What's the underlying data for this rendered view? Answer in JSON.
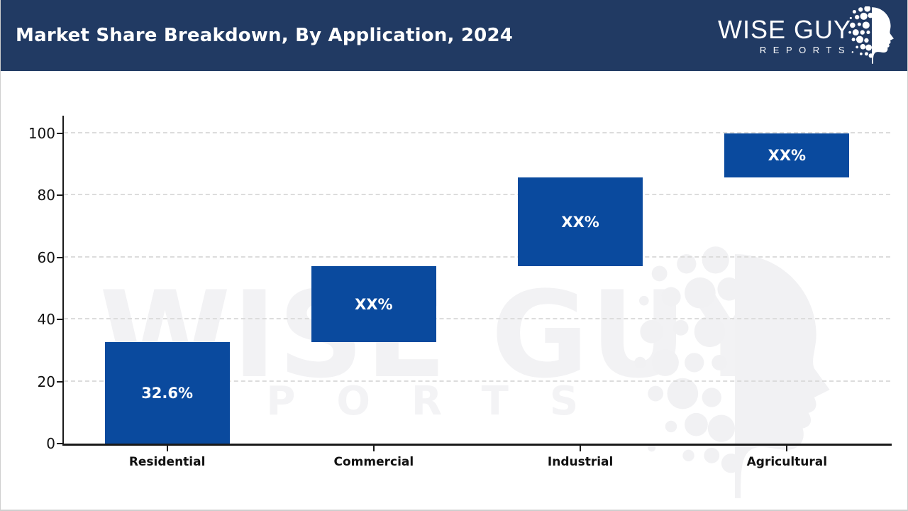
{
  "header": {
    "title": "Market Share Breakdown, By Application, 2024",
    "bg_color": "#213a63",
    "logo": {
      "line1": "WISE GUY",
      "line2": "REPORTS"
    }
  },
  "watermark": {
    "line1": "WISE GUY",
    "line2": "REPORTS"
  },
  "chart_data": {
    "type": "bar",
    "subtype": "waterfall",
    "title": "Market Share Breakdown, By Application, 2024",
    "categories": [
      "Residential",
      "Commercial",
      "Industrial",
      "Agricultural"
    ],
    "segments": [
      {
        "category": "Residential",
        "start": 0,
        "end": 32.6,
        "label": "32.6%"
      },
      {
        "category": "Commercial",
        "start": 32.6,
        "end": 57.1,
        "label": "XX%"
      },
      {
        "category": "Industrial",
        "start": 57.1,
        "end": 85.7,
        "label": "XX%"
      },
      {
        "category": "Agricultural",
        "start": 85.7,
        "end": 100,
        "label": "XX%"
      }
    ],
    "xlabel": "",
    "ylabel": "",
    "ylim": [
      0,
      105.6
    ],
    "yticks": [
      0,
      20,
      40,
      60,
      80,
      100
    ],
    "grid": "horizontal-dashed",
    "legend": "none",
    "bar_color": "#0a4a9e",
    "bar_label_color": "#ffffff",
    "grid_color": "#dcdcdc",
    "axis_color": "#1a1a1a",
    "tick_label_color": "#111111"
  }
}
